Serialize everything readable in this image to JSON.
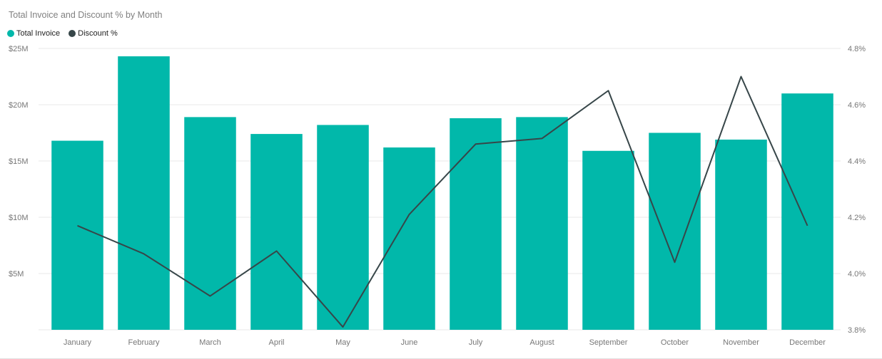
{
  "title": "Total Invoice and Discount % by Month",
  "chart_data": {
    "type": "combo",
    "title": "Total Invoice and Discount % by Month",
    "categories": [
      "January",
      "February",
      "March",
      "April",
      "May",
      "June",
      "July",
      "August",
      "September",
      "October",
      "November",
      "December"
    ],
    "series": [
      {
        "name": "Total Invoice",
        "type": "bar",
        "axis": "left",
        "color": "#01b8aa",
        "unit": "$M",
        "values": [
          16.8,
          24.3,
          18.9,
          17.4,
          18.2,
          16.2,
          18.8,
          18.9,
          15.9,
          17.5,
          16.9,
          21.0
        ]
      },
      {
        "name": "Discount %",
        "type": "line",
        "axis": "right",
        "color": "#374649",
        "unit": "%",
        "values": [
          4.17,
          4.07,
          3.92,
          4.08,
          3.81,
          4.21,
          4.46,
          4.48,
          4.65,
          4.04,
          4.7,
          4.17
        ]
      }
    ],
    "left_axis": {
      "min": 0,
      "max": 25,
      "tick_values": [
        0,
        5,
        10,
        15,
        20,
        25
      ],
      "tick_labels": [
        "",
        "$5M",
        "$10M",
        "$15M",
        "$20M",
        "$25M"
      ]
    },
    "right_axis": {
      "min": 3.8,
      "max": 4.8,
      "tick_values": [
        3.8,
        4.0,
        4.2,
        4.4,
        4.6,
        4.8
      ],
      "tick_labels": [
        "3.8%",
        "4.0%",
        "4.2%",
        "4.4%",
        "4.6%",
        "4.8%"
      ]
    },
    "grid": true,
    "legend_position": "top-left"
  },
  "colors": {
    "bar": "#01b8aa",
    "line": "#374649",
    "grid": "#e8e8e8",
    "axis_text": "#777777",
    "title_text": "#808080",
    "legend_text": "#212121",
    "background": "#ffffff"
  }
}
